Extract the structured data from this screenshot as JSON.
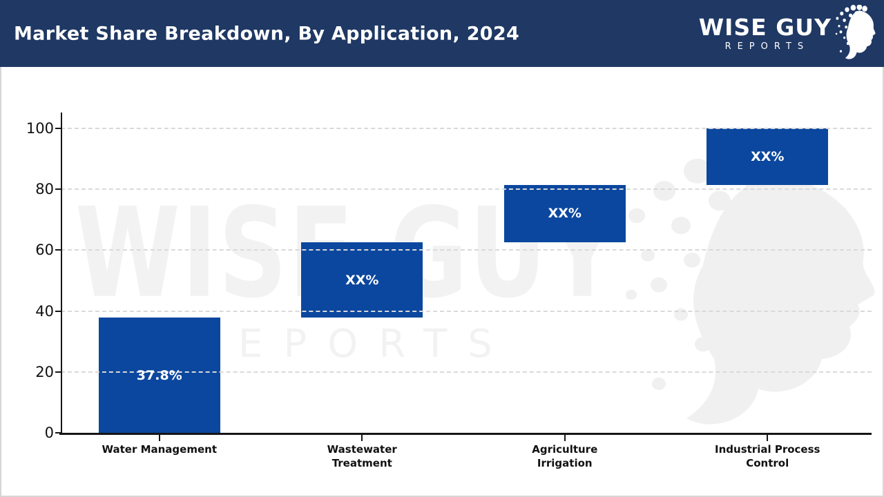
{
  "header": {
    "title": "Market Share Breakdown, By Application, 2024",
    "bg_color": "#1F3864",
    "logo": {
      "wordmark": "WISE GUY",
      "subtext": "REPORTS"
    }
  },
  "watermark": {
    "wordmark": "WISE GUY",
    "subtext": "REPORTS"
  },
  "chart_data": {
    "type": "bar",
    "subtype": "floating-segment-breakdown",
    "title": "Market Share Breakdown, By Application, 2024",
    "categories": [
      "Water Management",
      "Wastewater Treatment",
      "Agriculture Irrigation",
      "Industrial Process Control"
    ],
    "segments": [
      {
        "category": "Water Management",
        "label_lines": [
          "Water Management"
        ],
        "start": 0,
        "end": 37.8,
        "value_label": "37.8%"
      },
      {
        "category": "Wastewater Treatment",
        "label_lines": [
          "Wastewater",
          "Treatment"
        ],
        "start": 37.8,
        "end": 62.6,
        "value_label": "XX%"
      },
      {
        "category": "Agriculture Irrigation",
        "label_lines": [
          "Agriculture",
          "Irrigation"
        ],
        "start": 62.6,
        "end": 81.4,
        "value_label": "XX%"
      },
      {
        "category": "Industrial Process Control",
        "label_lines": [
          "Industrial Process",
          "Control"
        ],
        "start": 81.4,
        "end": 100,
        "value_label": "XX%"
      }
    ],
    "yticks": [
      0,
      20,
      40,
      60,
      80,
      100
    ],
    "ylim": [
      0,
      105
    ],
    "bar_color": "#0B479E",
    "grid": "horizontal-dashed",
    "gridline_color": "#D9D9D9",
    "axis_color": "#151515",
    "legend": "none"
  }
}
